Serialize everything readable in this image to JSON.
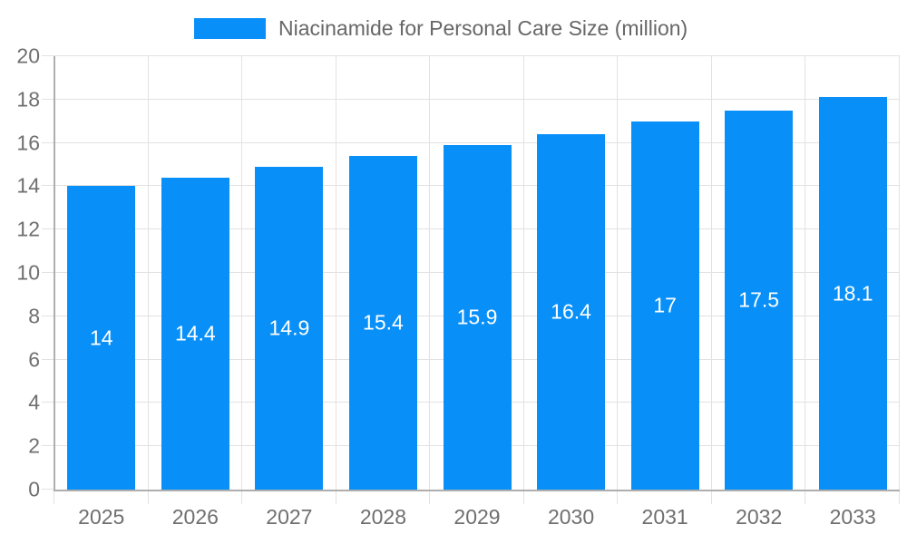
{
  "chart_data": {
    "type": "bar",
    "legend": "Niacinamide for Personal Care Size (million)",
    "legend_position": "top",
    "categories": [
      "2025",
      "2026",
      "2027",
      "2028",
      "2029",
      "2030",
      "2031",
      "2032",
      "2033"
    ],
    "values": [
      14,
      14.4,
      14.9,
      15.4,
      15.9,
      16.4,
      17,
      17.5,
      18.1
    ],
    "bar_labels": [
      "14",
      "14.4",
      "14.9",
      "15.4",
      "15.9",
      "16.4",
      "17",
      "17.5",
      "18.1"
    ],
    "xlabel": "",
    "ylabel": "",
    "ylim": [
      0,
      20
    ],
    "yticks": [
      0,
      2,
      4,
      6,
      8,
      10,
      12,
      14,
      16,
      18,
      20
    ],
    "grid": true,
    "colors": {
      "bar": "#0990f8",
      "grid_line": "#e2e2e2",
      "axis_line": "#aeaeae",
      "tick_text": "#6f6f6f",
      "legend_text": "#676767",
      "bar_label_text": "#ffffff",
      "background": "#ffffff"
    }
  }
}
